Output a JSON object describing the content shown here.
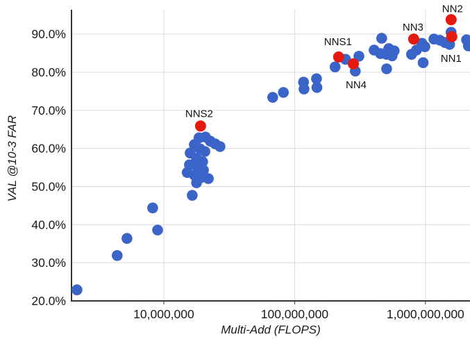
{
  "chart_data": {
    "type": "scatter",
    "title": "",
    "xlabel": "Multi-Add (FLOPS)",
    "ylabel": "VAL @10-3 FAR",
    "x_scale": "log",
    "x_domain": [
      1970000,
      2190000000
    ],
    "y_domain": [
      20,
      96.4
    ],
    "x_ticks": [
      10000000,
      100000000,
      1000000000
    ],
    "x_tick_labels": [
      "10,000,000",
      "100,000,000",
      "1,000,000,000"
    ],
    "y_ticks": [
      20,
      30,
      40,
      50,
      60,
      70,
      80,
      90
    ],
    "y_tick_labels": [
      "20.0%",
      "30.0%",
      "40.0%",
      "50.0%",
      "60.0%",
      "70.0%",
      "80.0%",
      "90.0%"
    ],
    "grid": true,
    "legend": "none",
    "colors": {
      "grid": "#d9d9d9",
      "axis": "#333333",
      "tick_text": "#1a1a1a",
      "blue_series": "#3b64c8",
      "red_series": "#e51a0f"
    },
    "series": [
      {
        "name": "baseline-models",
        "color": "#3b64c8",
        "points": [
          [
            2170000,
            22.9
          ],
          [
            4400000,
            31.9
          ],
          [
            5230000,
            36.4
          ],
          [
            8220000,
            44.4
          ],
          [
            8960000,
            38.6
          ],
          [
            16500000,
            47.7
          ],
          [
            18600000,
            62.8
          ],
          [
            20800000,
            63.0
          ],
          [
            22700000,
            61.9
          ],
          [
            24700000,
            61.2
          ],
          [
            26900000,
            60.5
          ],
          [
            17100000,
            61.0
          ],
          [
            18900000,
            59.9
          ],
          [
            15900000,
            58.8
          ],
          [
            20600000,
            59.2
          ],
          [
            17800000,
            57.4
          ],
          [
            19800000,
            56.5
          ],
          [
            15700000,
            55.7
          ],
          [
            18200000,
            54.8
          ],
          [
            20100000,
            54.3
          ],
          [
            15100000,
            53.7
          ],
          [
            17100000,
            53.0
          ],
          [
            19300000,
            52.4
          ],
          [
            21900000,
            52.1
          ],
          [
            17800000,
            51.0
          ],
          [
            68000000,
            73.4
          ],
          [
            82000000,
            74.7
          ],
          [
            117000000,
            77.4
          ],
          [
            118000000,
            75.6
          ],
          [
            147000000,
            78.3
          ],
          [
            148000000,
            76.0
          ],
          [
            204000000,
            81.4
          ],
          [
            245000000,
            83.4
          ],
          [
            291000000,
            80.3
          ],
          [
            310000000,
            84.2
          ],
          [
            463000000,
            88.9
          ],
          [
            405000000,
            85.8
          ],
          [
            524000000,
            86.2
          ],
          [
            577000000,
            85.6
          ],
          [
            505000000,
            84.7
          ],
          [
            556000000,
            84.3
          ],
          [
            453000000,
            84.9
          ],
          [
            505000000,
            80.9
          ],
          [
            940000000,
            87.6
          ],
          [
            990000000,
            86.7
          ],
          [
            853000000,
            85.8
          ],
          [
            783000000,
            84.7
          ],
          [
            960000000,
            82.5
          ],
          [
            1160000000,
            88.7
          ],
          [
            1290000000,
            88.4
          ],
          [
            1410000000,
            87.8
          ],
          [
            1530000000,
            87.3
          ],
          [
            1570000000,
            90.5
          ],
          [
            2060000000,
            88.5
          ],
          [
            2130000000,
            86.9
          ]
        ]
      },
      {
        "name": "highlighted-models",
        "color": "#e51a0f",
        "points": [
          {
            "label": "NNS2",
            "x": 19100000,
            "y": 65.9,
            "dx": -2,
            "dy": -18
          },
          {
            "label": "NNS1",
            "x": 217000000,
            "y": 84.0,
            "dx": -1,
            "dy": -22
          },
          {
            "label": "NN4",
            "x": 281000000,
            "y": 82.2,
            "dx": 4,
            "dy": 30
          },
          {
            "label": "NN3",
            "x": 813000000,
            "y": 88.7,
            "dx": -1,
            "dy": -17
          },
          {
            "label": "NN2",
            "x": 1570000000,
            "y": 93.8,
            "dx": 2,
            "dy": -16
          },
          {
            "label": "NN1",
            "x": 1590000000,
            "y": 89.3,
            "dx": -1,
            "dy": 31
          }
        ]
      }
    ]
  }
}
